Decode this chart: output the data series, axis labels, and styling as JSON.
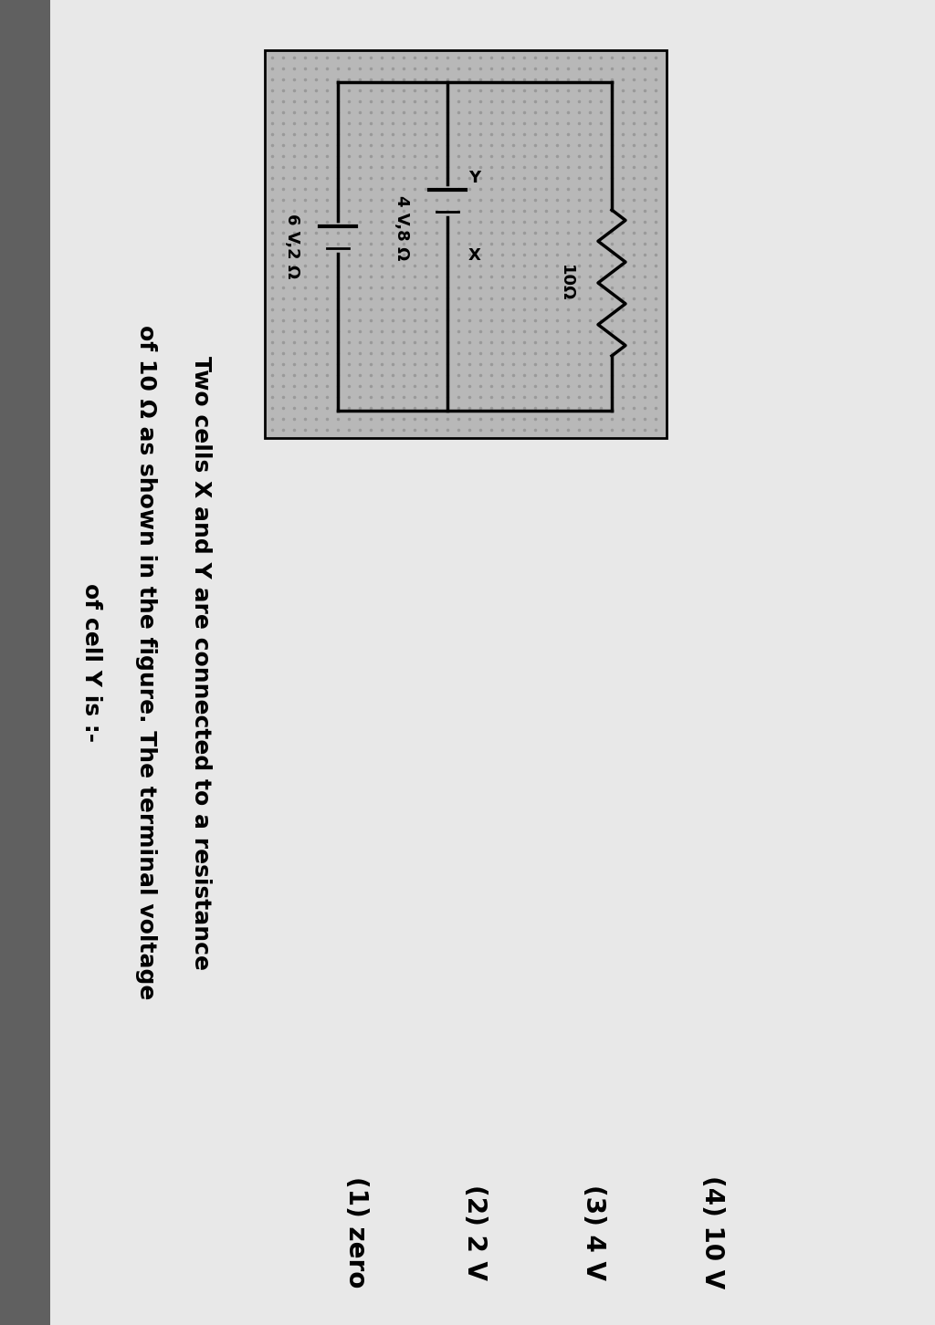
{
  "page_bg": "#c8c8c8",
  "left_strip_color": "#888888",
  "white_area_color": "#e0e0e0",
  "circuit_bg": "#b0b0b0",
  "text_color": "#000000",
  "title_line1": "Two cells X and Y are connected to a resistance",
  "title_line2": "of 10 Ω as shown in the figure. The terminal voltage",
  "title_line3": "of cell Y is :-",
  "options": [
    "(1) zero",
    "(2) 2 V",
    "(3) 4 V",
    "(4) 10 V"
  ],
  "cell_x_label": "6 V,2 Ω",
  "cell_y_label": "4 V,8 Ω",
  "resistor_label": "10Ω",
  "cell_x_node": "X",
  "cell_y_node": "Y",
  "fig_width": 10.24,
  "fig_height": 14.52,
  "dpi": 100
}
